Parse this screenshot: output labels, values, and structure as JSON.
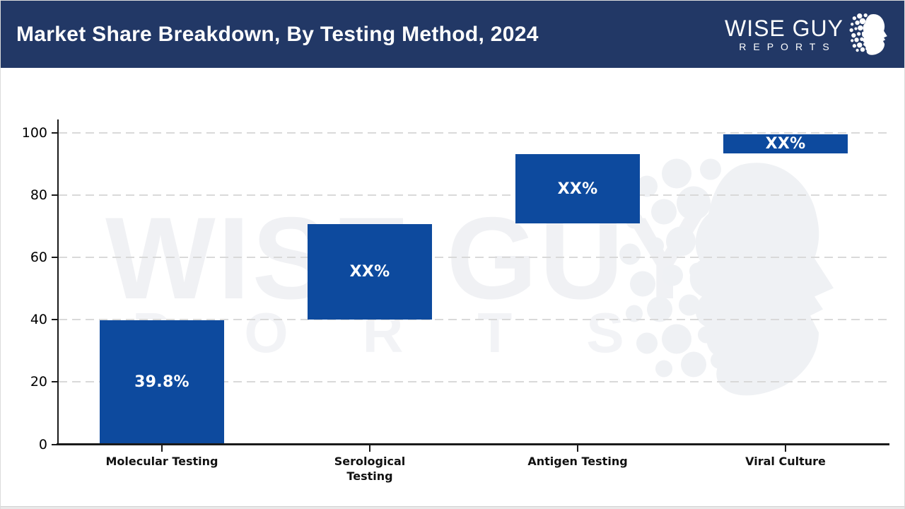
{
  "header": {
    "title": "Market Share Breakdown, By Testing Method, 2024",
    "bg_color": "#223866",
    "logo": {
      "line1": "WISE GUY",
      "line2": "REPORTS"
    }
  },
  "watermark": {
    "line1": "WISE GUY",
    "line2": "PORTS"
  },
  "chart_data": {
    "type": "bar",
    "subtype": "waterfall",
    "title": "Market Share Breakdown, By Testing Method, 2024",
    "xlabel": "",
    "ylabel": "",
    "ylim": [
      0,
      100
    ],
    "yticks": [
      0,
      20,
      40,
      60,
      80,
      100
    ],
    "grid": "horizontal-dashed",
    "legend": "none",
    "bar_color": "#0d4a9e",
    "value_label_color": "#ffffff",
    "categories": [
      "Molecular Testing",
      "Serological Testing",
      "Antigen Testing",
      "Viral Culture"
    ],
    "segments": [
      {
        "category": "Molecular Testing",
        "display_label": "Molecular Testing",
        "start": 0,
        "end": 39.8,
        "value_label": "39.8%"
      },
      {
        "category": "Serological Testing",
        "display_label": "Serological\nTesting",
        "start": 40.0,
        "end": 70.7,
        "value_label": "XX%"
      },
      {
        "category": "Antigen Testing",
        "display_label": "Antigen Testing",
        "start": 70.9,
        "end": 93.0,
        "value_label": "XX%"
      },
      {
        "category": "Viral Culture",
        "display_label": "Viral Culture",
        "start": 93.2,
        "end": 99.4,
        "value_label": "XX%"
      }
    ]
  },
  "colors": {
    "header_bg": "#223866",
    "bar": "#0d4a9e",
    "gridline": "#d9d9d9",
    "axis": "#1a1a1a",
    "watermark": "#f0f1f4"
  }
}
